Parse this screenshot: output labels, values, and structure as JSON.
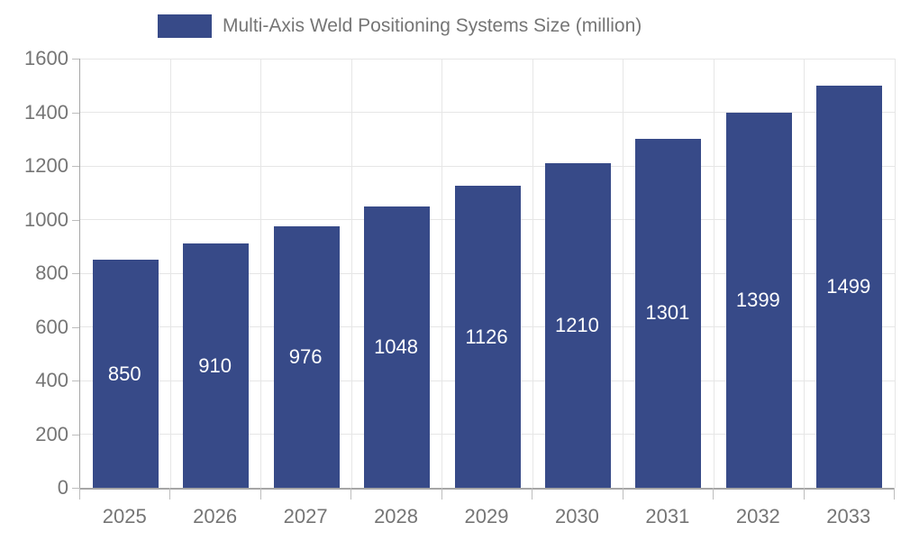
{
  "legend": {
    "swatch_color": "#374a88"
  },
  "chart_data": {
    "type": "bar",
    "title": "Multi-Axis Weld Positioning Systems Size (million)",
    "categories": [
      "2025",
      "2026",
      "2027",
      "2028",
      "2029",
      "2030",
      "2031",
      "2032",
      "2033"
    ],
    "values": [
      850,
      910,
      976,
      1048,
      1126,
      1210,
      1301,
      1399,
      1499
    ],
    "xlabel": "",
    "ylabel": "",
    "ylim": [
      0,
      1600
    ],
    "ytick_interval": 200,
    "yticks": [
      0,
      200,
      400,
      600,
      800,
      1000,
      1200,
      1400,
      1600
    ],
    "grid": true,
    "legend_position": "top",
    "bar_color": "#374a88",
    "value_label_color": "#ffffff",
    "axis_label_color": "#757575",
    "grid_color": "#e6e6e6",
    "axis_line_color": "#a6a6a6",
    "background_color": "#ffffff"
  }
}
